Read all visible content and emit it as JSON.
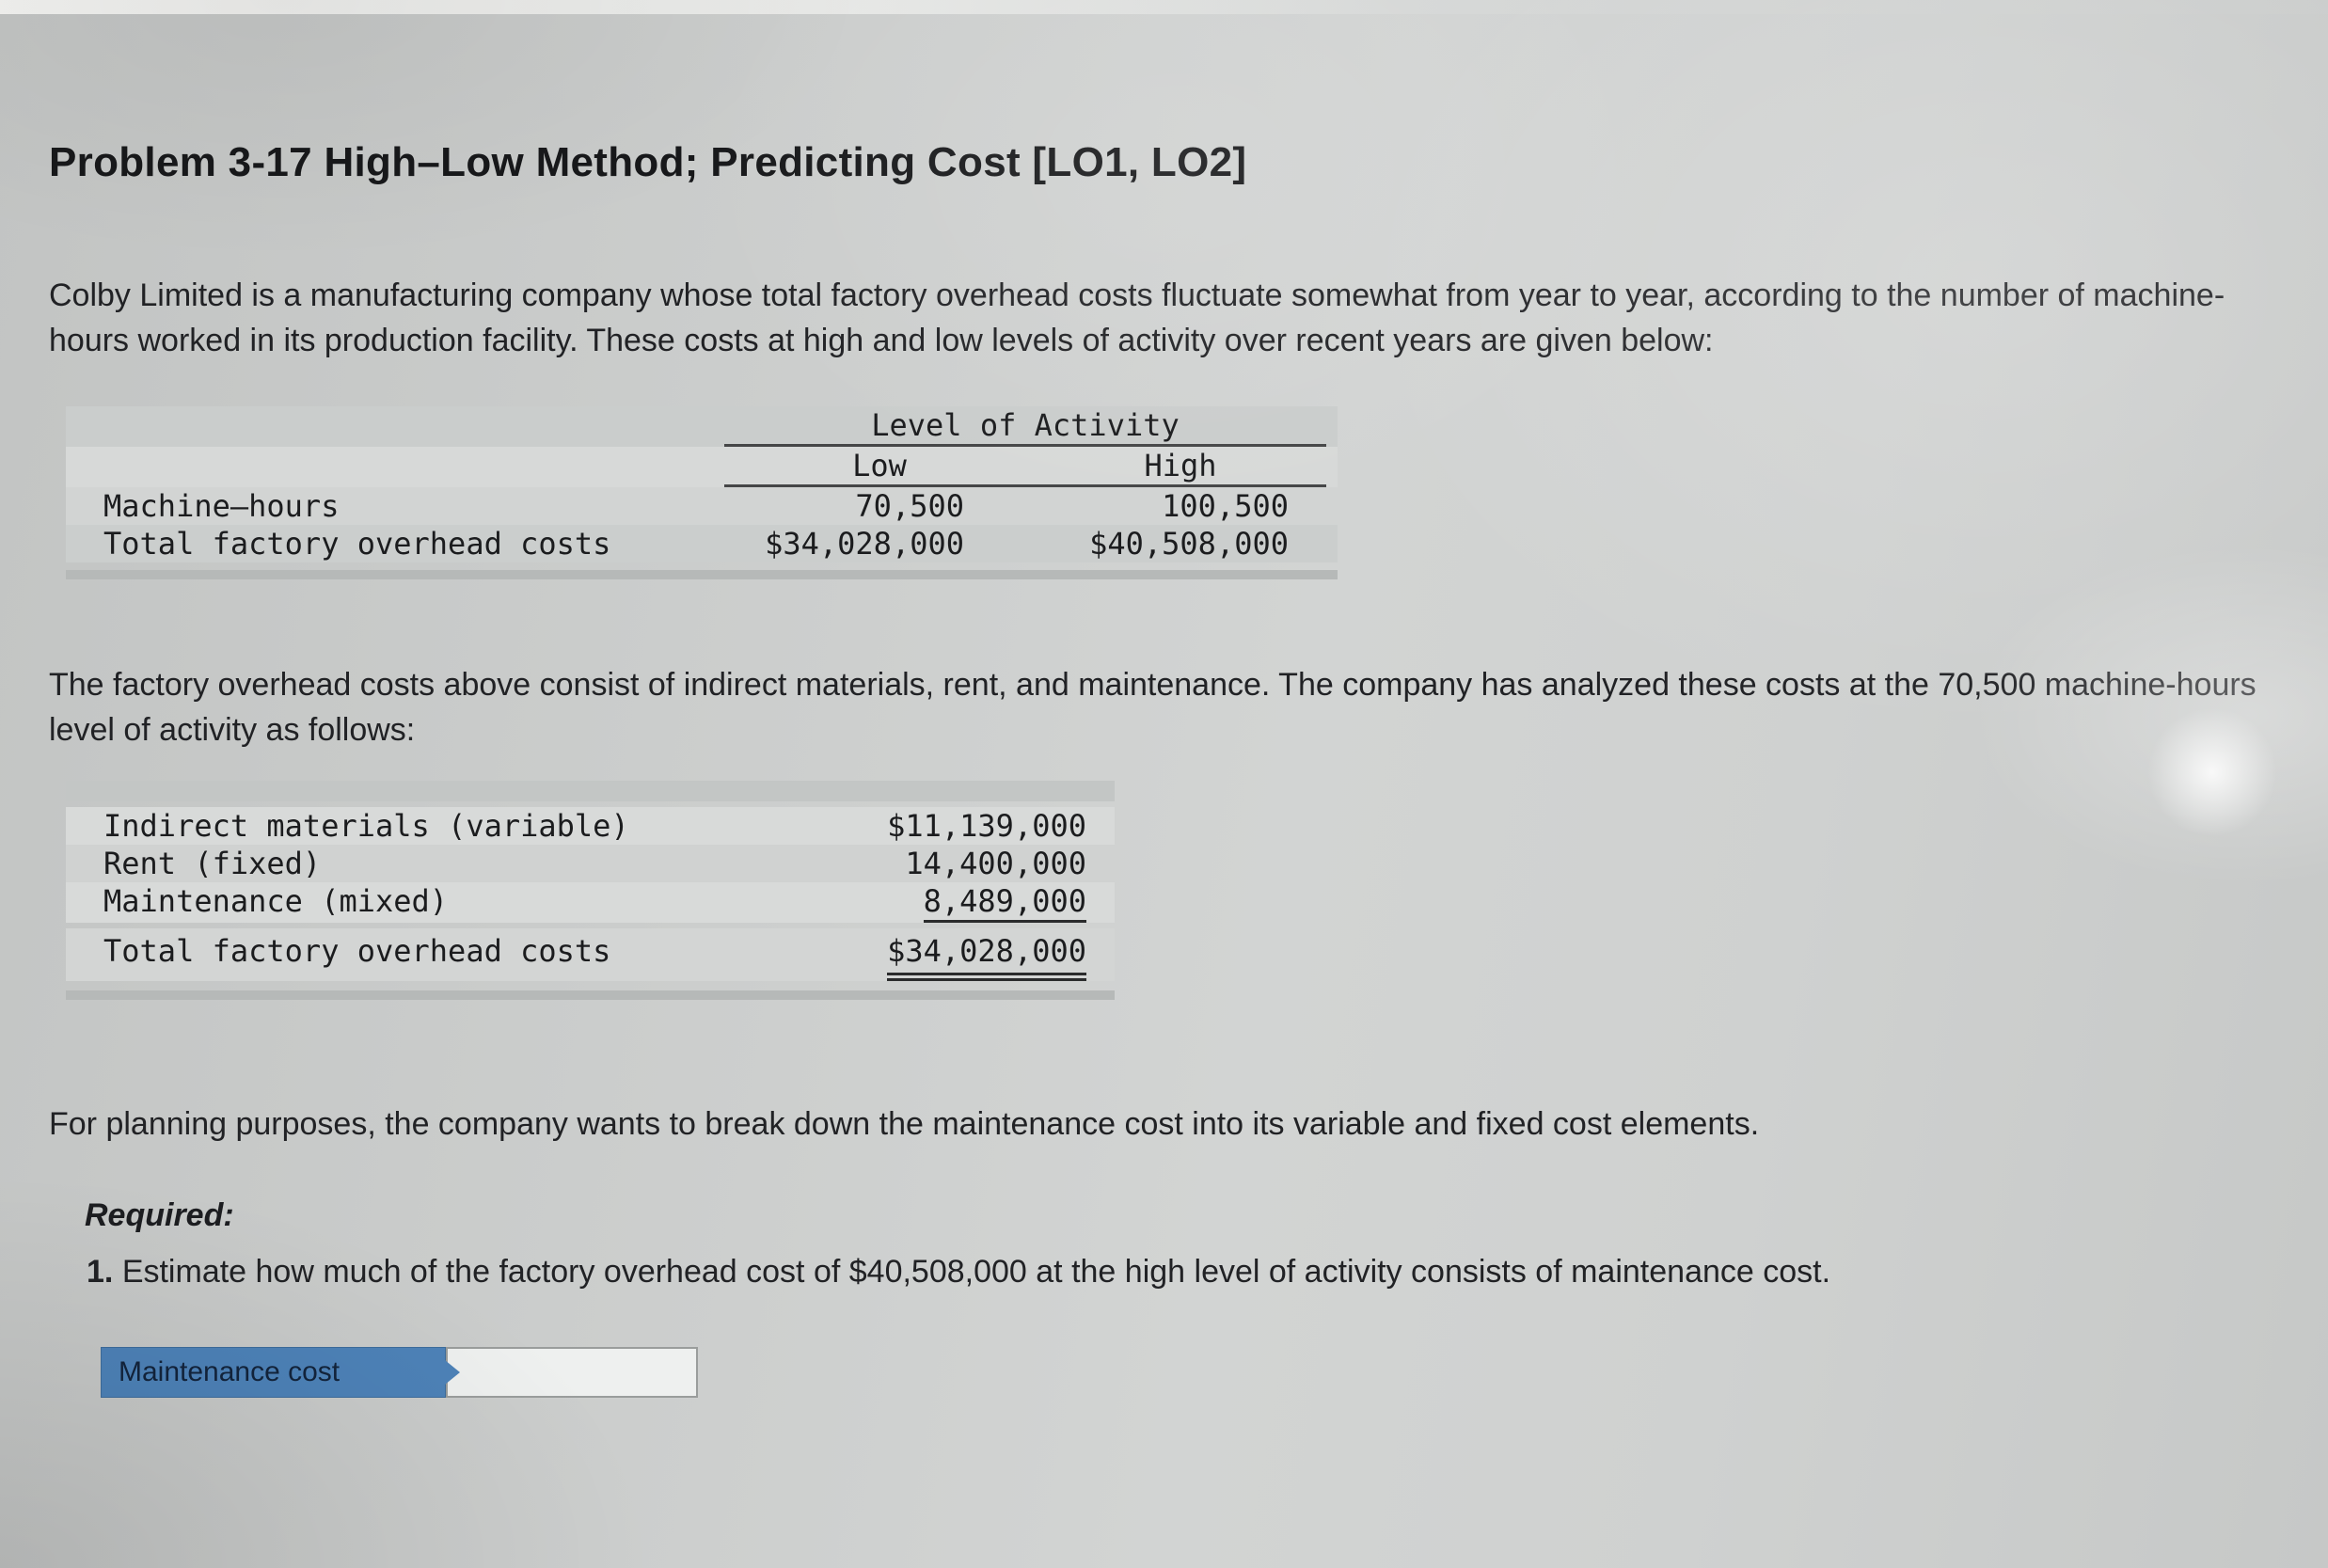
{
  "page": {
    "title": "Problem 3-17 High–Low Method; Predicting Cost [LO1, LO2]",
    "intro": "Colby Limited is a manufacturing company whose total factory overhead costs fluctuate somewhat from year to year, according to the number of machine-hours worked in its production facility. These costs at high and low levels of activity over recent years are given below:",
    "analysis": "The factory overhead costs above consist of indirect materials, rent, and maintenance. The company has analyzed these costs at the 70,500 machine-hours level of activity as follows:",
    "planning": "For planning purposes, the company wants to break down the maintenance cost into its variable and fixed cost elements.",
    "required_label": "Required:",
    "requirement": {
      "number": "1.",
      "text": "Estimate how much of the factory overhead cost of $40,508,000 at the high level of activity consists of maintenance cost."
    }
  },
  "tables": {
    "activity": {
      "header": "Level of Activity",
      "columns": {
        "low": "Low",
        "high": "High"
      },
      "rows": [
        {
          "label": "Machine–hours",
          "low": "70,500",
          "high": "100,500"
        },
        {
          "label": "Total factory overhead costs",
          "low": "$34,028,000",
          "high": "$40,508,000"
        }
      ]
    },
    "costs": {
      "rows": [
        {
          "label": "Indirect materials (variable)",
          "value": "$11,139,000"
        },
        {
          "label": "Rent (fixed)",
          "value": "14,400,000"
        },
        {
          "label": "Maintenance (mixed)",
          "value": "8,489,000"
        }
      ],
      "total": {
        "label": "Total factory overhead costs",
        "value": "$34,028,000"
      }
    }
  },
  "answer": {
    "label": "Maintenance cost",
    "value": ""
  },
  "colors": {
    "label_blue": "#4d82b8"
  }
}
